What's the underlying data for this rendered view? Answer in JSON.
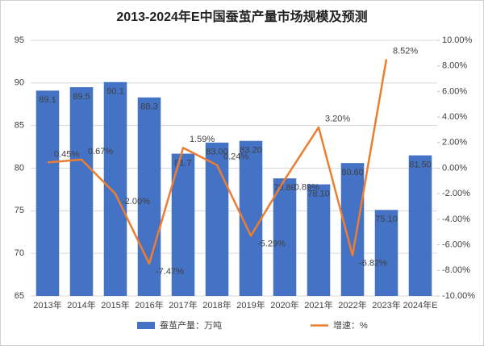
{
  "chart_data": {
    "type": "combo",
    "title": "2013-2024年E中国蚕茧产量市场规模及预测",
    "categories": [
      "2013年",
      "2014年",
      "2015年",
      "2016年",
      "2017年",
      "2018年",
      "2019年",
      "2020年",
      "2021年",
      "2022年",
      "2023年",
      "2024年E"
    ],
    "series": [
      {
        "name": "蚕茧产量：万吨",
        "type": "bar",
        "color": "#4472c4",
        "values": [
          89.1,
          89.5,
          90.1,
          88.3,
          81.7,
          83.0,
          83.2,
          78.8,
          78.1,
          80.6,
          75.1,
          81.5
        ],
        "value_labels": [
          "89.1",
          "89.5",
          "90.1",
          "88.3",
          "81.7",
          "83.00",
          "83.20",
          "78.80",
          "78.10",
          "80.60",
          "75.10",
          "81.50"
        ]
      },
      {
        "name": "增速：%",
        "type": "line",
        "axis": "y2",
        "color": "#ed7d31",
        "values": [
          0.45,
          0.67,
          -2.0,
          -7.47,
          1.59,
          0.24,
          -5.29,
          -0.89,
          3.2,
          -6.82,
          8.52,
          null
        ],
        "value_labels": [
          "0.45%",
          "0.67%",
          "-2.00%",
          "-7.47%",
          "1.59%",
          "0.24%",
          "-5.29%",
          "-0.89%",
          "3.20%",
          "-6.82%",
          "8.52%",
          null
        ]
      }
    ],
    "ylim": [
      65,
      95
    ],
    "yticks": [
      65,
      70,
      75,
      80,
      85,
      90,
      95
    ],
    "y2lim": [
      -10,
      10
    ],
    "y2ticks": [
      {
        "value": -10,
        "label": "-10.00%"
      },
      {
        "value": -8,
        "label": "-8.00%"
      },
      {
        "value": -6,
        "label": "-6.00%"
      },
      {
        "value": -4,
        "label": "-4.00%"
      },
      {
        "value": -2,
        "label": "-2.00%"
      },
      {
        "value": 0,
        "label": "0.00%"
      },
      {
        "value": 2,
        "label": "2.00%"
      },
      {
        "value": 4,
        "label": "4.00%"
      },
      {
        "value": 6,
        "label": "6.00%"
      },
      {
        "value": 8,
        "label": "8.00%"
      },
      {
        "value": 10,
        "label": "10.00%"
      }
    ],
    "grid": true
  }
}
